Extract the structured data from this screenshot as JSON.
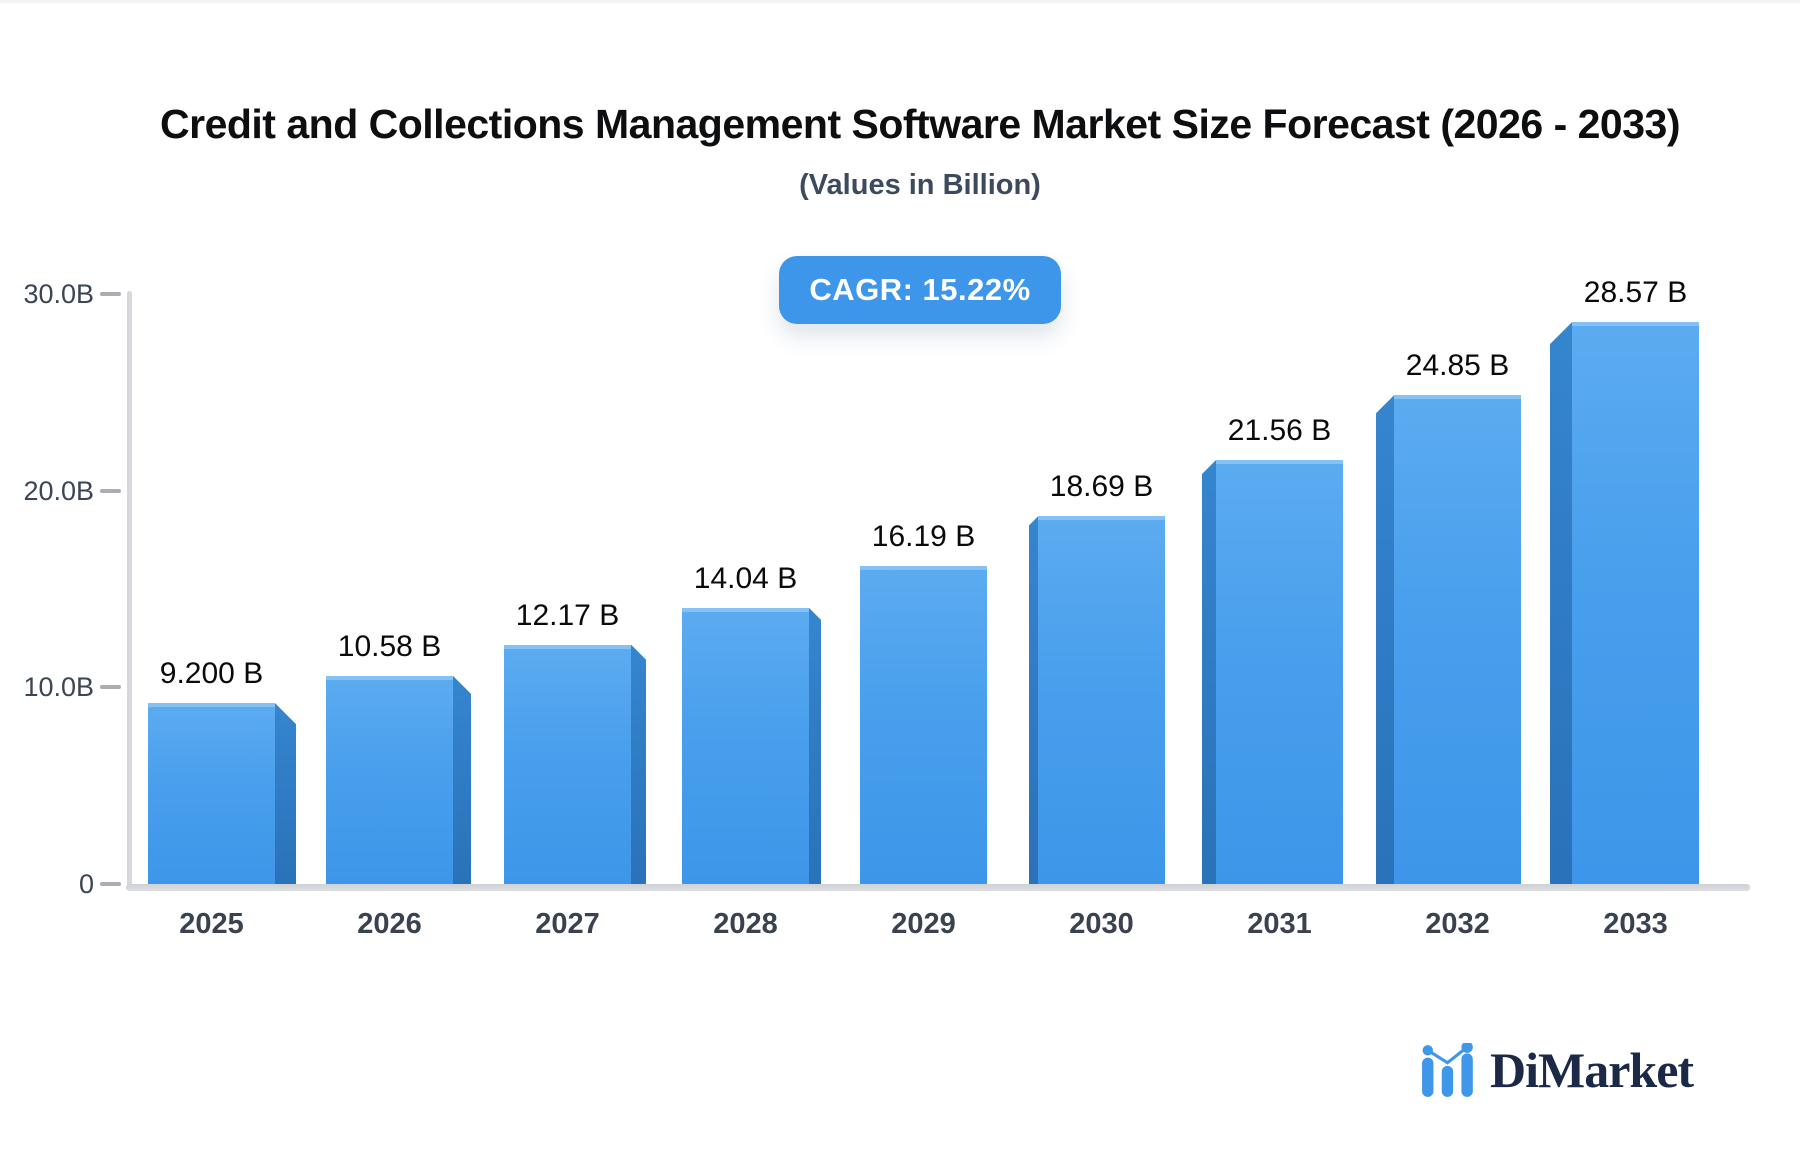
{
  "header": {
    "title": "Credit and Collections Management Software Market Size Forecast (2026 - 2033)",
    "subtitle": "(Values in Billion)",
    "badge_label": "CAGR: 15.22%"
  },
  "colors": {
    "accent_blue": "#3d96ea",
    "bar_front": "#489fec",
    "bar_front_highlight": "#84c1f4",
    "bar_side": "#2d7ac4",
    "axis_gray": "#d6d8db",
    "label_dark": "#39434f"
  },
  "chart_data": {
    "type": "bar",
    "title": "Credit and Collections Management Software Market Size Forecast (2026 - 2033)",
    "subtitle": "(Values in Billion)",
    "categories": [
      "2025",
      "2026",
      "2027",
      "2028",
      "2029",
      "2030",
      "2031",
      "2032",
      "2033"
    ],
    "values": [
      9.2,
      10.58,
      12.17,
      14.04,
      16.19,
      18.69,
      21.56,
      24.85,
      28.57
    ],
    "value_labels": [
      "9.200 B",
      "10.58 B",
      "12.17 B",
      "14.04 B",
      "16.19 B",
      "18.69 B",
      "21.56 B",
      "24.85 B",
      "28.57 B"
    ],
    "unit": "Billion",
    "cagr": "15.22%",
    "xlabel": "",
    "ylabel": "",
    "ylim": [
      0,
      30
    ],
    "yticks": [
      {
        "value": 30,
        "label": "30.0B"
      },
      {
        "value": 20,
        "label": "20.0B"
      },
      {
        "value": 10,
        "label": "10.0B"
      },
      {
        "value": 0,
        "label": "0"
      }
    ],
    "grid": false,
    "legend": false,
    "style": "3d-perspective-columns"
  },
  "watermark": {
    "brand": "DiMarket",
    "icon": "mini-bar-chart-icon"
  }
}
